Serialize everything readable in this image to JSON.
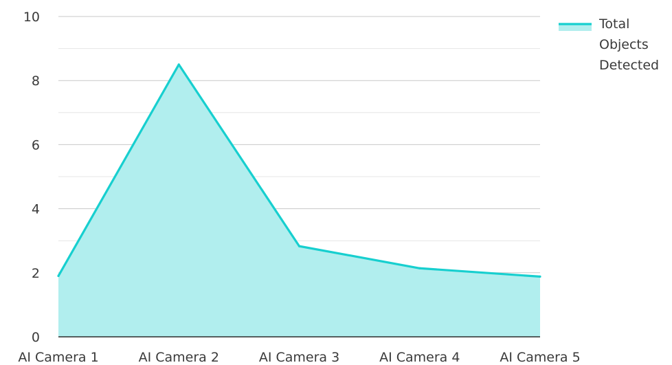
{
  "chart_data": {
    "type": "area",
    "categories": [
      "AI Camera 1",
      "AI Camera 2",
      "AI Camera 3",
      "AI Camera 4",
      "AI Camera 5"
    ],
    "series": [
      {
        "name": "Total Objects Detected",
        "values": [
          1.9,
          8.5,
          2.83,
          2.14,
          1.88
        ]
      }
    ],
    "legend": {
      "position": "top-right",
      "lines": [
        "Total",
        "Objects",
        "Detected"
      ]
    },
    "ylim": [
      0,
      10
    ],
    "yticks": [
      0,
      2,
      4,
      6,
      8,
      10
    ],
    "grid": true,
    "colors": {
      "line": "#17cfcf",
      "fill": "#b1eeee",
      "major_grid": "#c8c8c8",
      "minor_grid": "#e6e6e6",
      "axis": "#2b2b2b"
    }
  }
}
